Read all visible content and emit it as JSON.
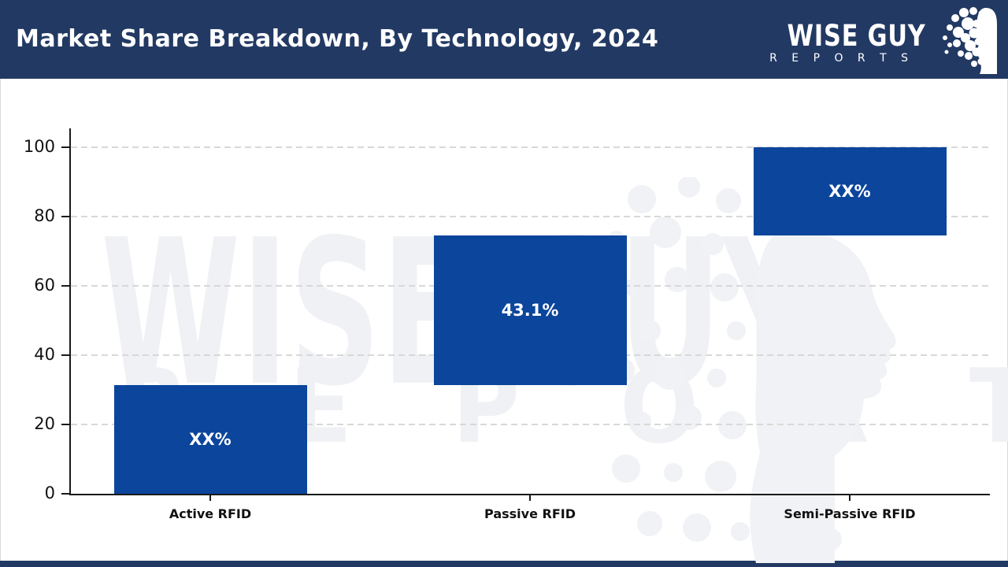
{
  "header": {
    "title": "Market Share Breakdown, By Technology, 2024",
    "bg_color": "#223963"
  },
  "logo": {
    "line1": "WISE GUY",
    "line2": "R E P O R T S",
    "head_icon": "dotted-face-profile"
  },
  "watermark": {
    "line1": "WISE GUY",
    "line2": "R E P O R T S"
  },
  "chart_data": {
    "type": "bar",
    "subtype": "waterfall-floating-bars",
    "title": "Market Share Breakdown, By Technology, 2024",
    "categories": [
      "Active RFID",
      "Passive RFID",
      "Semi-Passive RFID"
    ],
    "segments": [
      {
        "category": "Active RFID",
        "start": 0,
        "end": 31.4,
        "label": "XX%"
      },
      {
        "category": "Passive RFID",
        "start": 31.4,
        "end": 74.5,
        "label": "43.1%"
      },
      {
        "category": "Semi-Passive RFID",
        "start": 74.5,
        "end": 100,
        "label": "XX%"
      }
    ],
    "yticks": [
      0,
      20,
      40,
      60,
      80,
      100
    ],
    "ylim": [
      0,
      105
    ],
    "xlabel": "",
    "ylabel": "",
    "grid": "dashed-horizontal",
    "legend": "none",
    "bar_color": "#0B459C",
    "bar_label_color": "#ffffff"
  }
}
